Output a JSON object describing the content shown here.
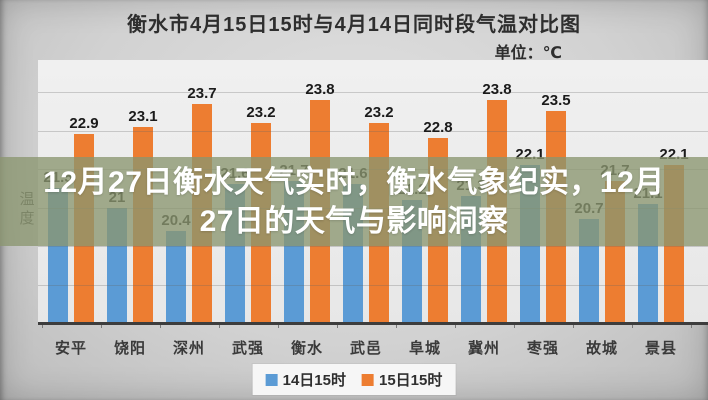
{
  "title": "衡水市4月15日15时与4月14日同时段气温对比图",
  "unit_label": "单位：℃",
  "y_axis_title": "温度",
  "overlay": {
    "line1": "12月27日衡水天气实时，衡水气象纪实，12月",
    "line2": "27日的天气与影响洞察",
    "full_text": "12月27日衡水天气实时，衡水气象纪实，12月27日的天气与影响洞察"
  },
  "chart_data": {
    "type": "bar",
    "title": "衡水市4月15日15时与4月14日同时段气温对比图",
    "unit": "℃",
    "ylabel": "温度",
    "xlabel": "",
    "ylim": [
      18,
      24.8
    ],
    "grid": true,
    "gridline_values": [
      19,
      20,
      21,
      22,
      23,
      24
    ],
    "legend_position": "bottom",
    "categories": [
      "安平",
      "饶阳",
      "深州",
      "武强",
      "衡水",
      "武邑",
      "阜城",
      "冀州",
      "枣强",
      "故城",
      "景县"
    ],
    "series": [
      {
        "name": "14日15时",
        "color": "#5b9bd5",
        "values": [
          21.5,
          21,
          20.4,
          21.6,
          21.7,
          21.6,
          21.2,
          21.3,
          22.1,
          20.7,
          21.1
        ],
        "labels": [
          "21.5",
          "21",
          "20.4",
          "21.6",
          "21.7",
          "21.6",
          "21.2",
          "21.3",
          "22.1",
          "20.7",
          "21.1"
        ]
      },
      {
        "name": "15日15时",
        "color": "#ed7d31",
        "values": [
          22.9,
          23.1,
          23.7,
          23.2,
          23.8,
          23.2,
          22.8,
          23.8,
          23.5,
          21.7,
          22.1
        ],
        "labels": [
          "22.9",
          "23.1",
          "23.7",
          "23.2",
          "23.8",
          "23.2",
          "22.8",
          "23.8",
          "23.5",
          "21.7",
          "22.1"
        ]
      }
    ]
  }
}
